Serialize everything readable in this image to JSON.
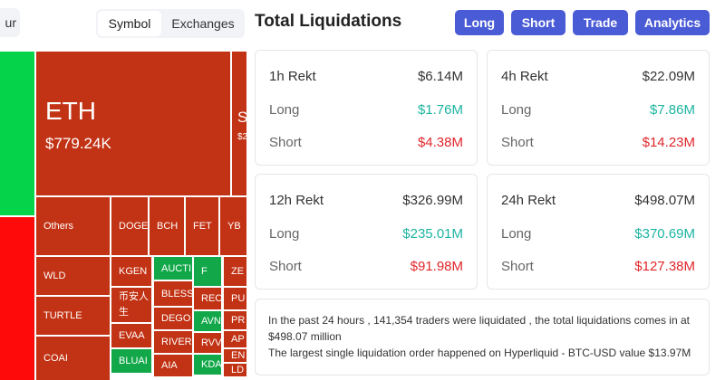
{
  "tabs": {
    "partial": "ur",
    "items": [
      "Symbol",
      "Exchanges"
    ]
  },
  "header": {
    "title": "Total Liquidations",
    "buttons": [
      "Long",
      "Short",
      "Trade",
      "Analytics"
    ]
  },
  "treemap": {
    "eth": {
      "label": "ETH",
      "value": "$779.24K"
    },
    "next": {
      "label": "S",
      "value": "$2"
    },
    "tiles": [
      "Others",
      "DOGE",
      "BCH",
      "FET",
      "YB",
      "WLD",
      "TURTLE",
      "COAI",
      "KGEN",
      "币安人生",
      "EVAA",
      "BLUAI",
      "AUCTI",
      "BLESS",
      "DEGO",
      "RIVER",
      "AIA",
      "F",
      "RECA",
      "AVN",
      "RVV",
      "KDA",
      "ZE",
      "PU",
      "PR",
      "AP",
      "EN",
      "LD"
    ]
  },
  "cards": [
    {
      "title": "1h Rekt",
      "total": "$6.14M",
      "long_label": "Long",
      "long": "$1.76M",
      "short_label": "Short",
      "short": "$4.38M"
    },
    {
      "title": "4h Rekt",
      "total": "$22.09M",
      "long_label": "Long",
      "long": "$7.86M",
      "short_label": "Short",
      "short": "$14.23M"
    },
    {
      "title": "12h Rekt",
      "total": "$326.99M",
      "long_label": "Long",
      "long": "$235.01M",
      "short_label": "Short",
      "short": "$91.98M"
    },
    {
      "title": "24h Rekt",
      "total": "$498.07M",
      "long_label": "Long",
      "long": "$370.69M",
      "short_label": "Short",
      "short": "$127.38M"
    }
  ],
  "summary": [
    "In the past 24 hours , 141,354 traders were liquidated , the total liquidations comes in at $498.07 million",
    "The largest single liquidation order happened on Hyperliquid - BTC-USD value $13.97M"
  ]
}
